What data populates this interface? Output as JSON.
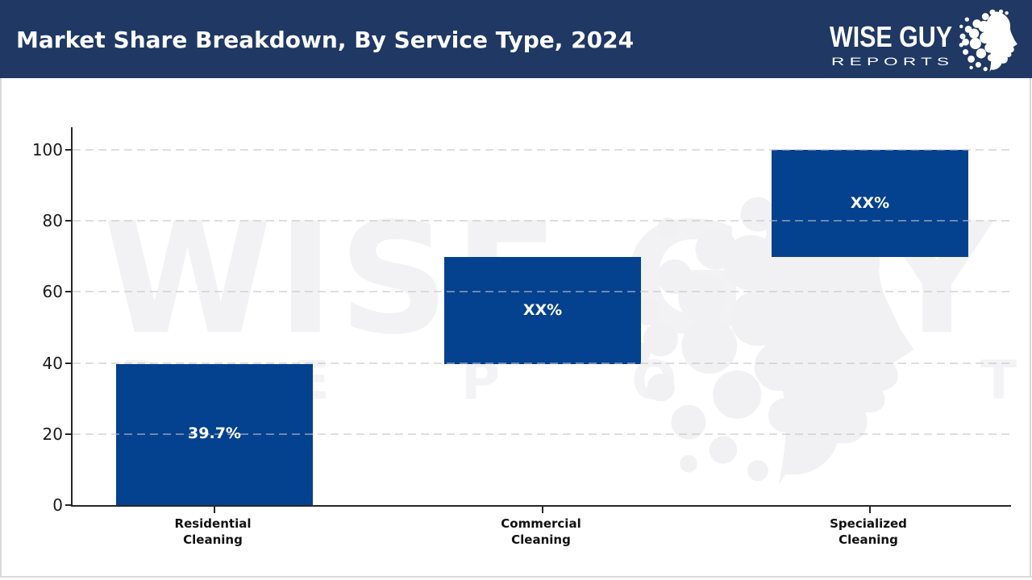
{
  "header": {
    "title": "Market Share Breakdown, By Service Type, 2024",
    "logo": {
      "line1": "WISE GUY",
      "line2": "R E P O R T S"
    }
  },
  "watermark": {
    "line1": "WISE GUY",
    "line2": "R E P O R T S"
  },
  "colors": {
    "header_bg": "#1F3864",
    "bar": "#04418F",
    "grid": "#d9d9d9",
    "axis": "#262626",
    "value_label": "#ffffff",
    "watermark": "#f1f1f3"
  },
  "chart_data": {
    "type": "bar",
    "subtype": "waterfall",
    "title": "Market Share Breakdown, By Service Type, 2024",
    "categories": [
      "Residential Cleaning",
      "Commercial Cleaning",
      "Specialized Cleaning"
    ],
    "series": [
      {
        "name": "Market Share %",
        "segments": [
          {
            "category": "Residential Cleaning",
            "start": 0,
            "end": 39.7,
            "label": "39.7%"
          },
          {
            "category": "Commercial Cleaning",
            "start": 39.7,
            "end": 69.8,
            "label": "XX%"
          },
          {
            "category": "Specialized Cleaning",
            "start": 69.8,
            "end": 100,
            "label": "XX%"
          }
        ]
      }
    ],
    "ylim": [
      0,
      106
    ],
    "yticks": [
      0,
      20,
      40,
      60,
      80,
      100
    ],
    "xlabel": "",
    "ylabel": "",
    "grid": "horizontal-dashed",
    "legend": "none"
  }
}
